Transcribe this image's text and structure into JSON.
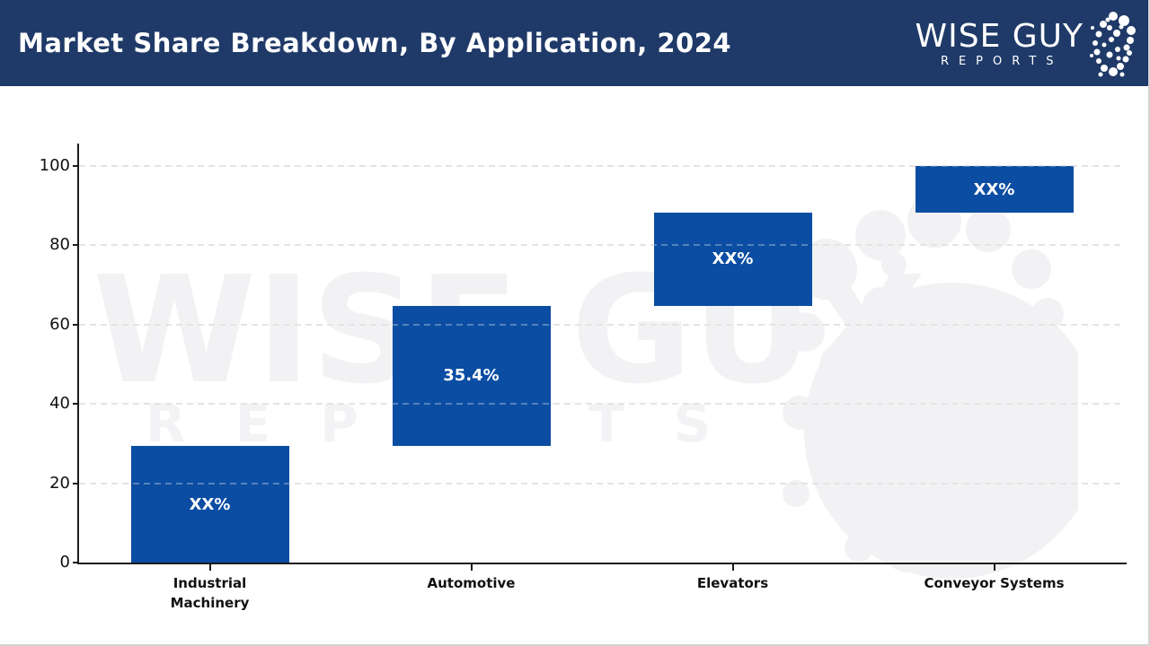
{
  "header": {
    "title": "Market Share Breakdown, By Application, 2024",
    "logo": {
      "line1": "WISE GUY",
      "line2": "REPORTS"
    }
  },
  "watermark": {
    "line1": "WISE GUY",
    "line2": "REPORTS"
  },
  "colors": {
    "header_bg": "#1f3a68",
    "bar": "#0b4da2",
    "bar_label": "#ffffff",
    "grid": "#d9d9d9",
    "axis": "#1c1c1c",
    "watermark": "#f2f2f4"
  },
  "chart_data": {
    "type": "bar",
    "subtype": "floating-waterfall",
    "title": "Market Share Breakdown, By Application, 2024",
    "categories": [
      "Industrial Machinery",
      "Automotive",
      "Elevators",
      "Conveyor Systems"
    ],
    "category_display": [
      "Industrial\nMachinery",
      "Automotive",
      "Elevators",
      "Conveyor Systems"
    ],
    "segments": [
      {
        "category": "Industrial Machinery",
        "start": 0,
        "end": 29.4,
        "label": "XX%"
      },
      {
        "category": "Automotive",
        "start": 29.4,
        "end": 64.8,
        "label": "35.4%"
      },
      {
        "category": "Elevators",
        "start": 64.8,
        "end": 88.2,
        "label": "XX%"
      },
      {
        "category": "Conveyor Systems",
        "start": 88.2,
        "end": 99.9,
        "label": "XX%"
      }
    ],
    "xlabel": "",
    "ylabel": "",
    "ylim": [
      0,
      105
    ],
    "yticks": [
      0,
      20,
      40,
      60,
      80,
      100
    ],
    "grid": "horizontal-dashed",
    "legend": "none"
  }
}
